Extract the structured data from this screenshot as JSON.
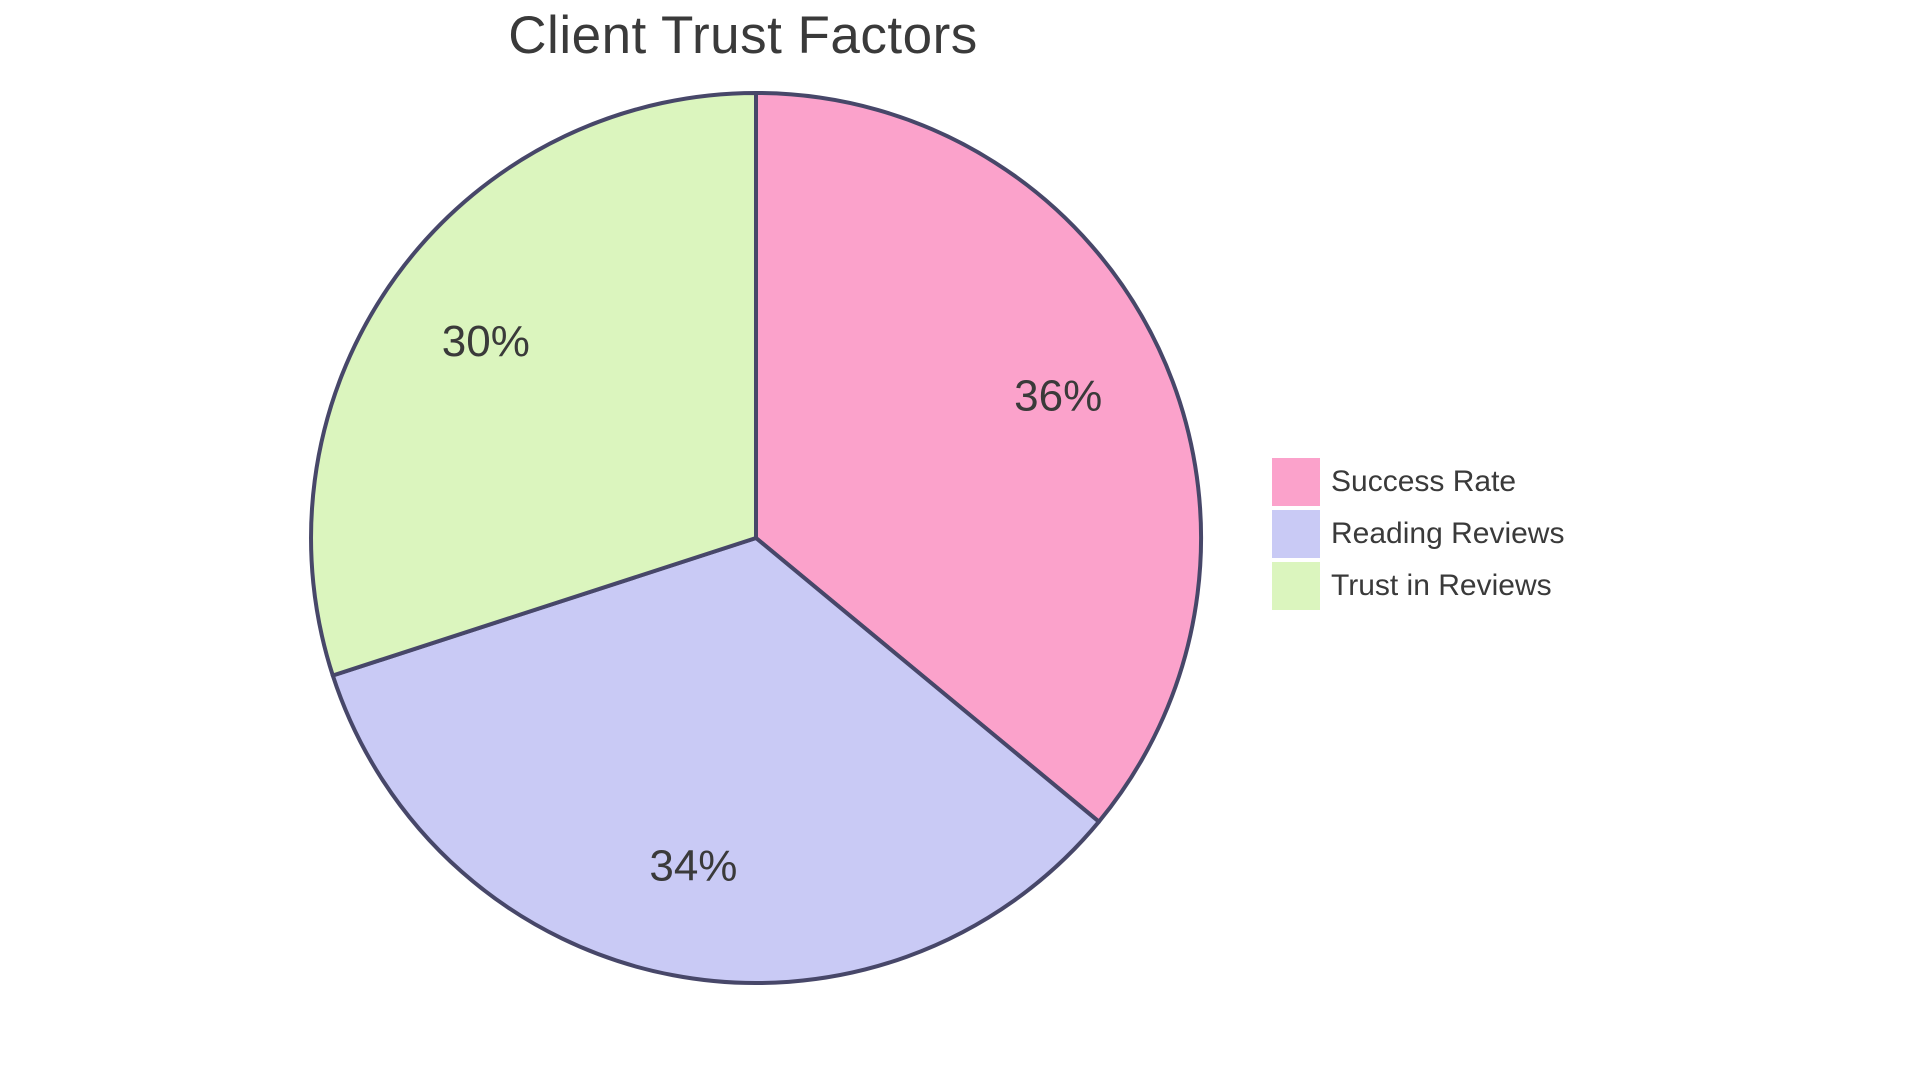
{
  "chart_data": {
    "type": "pie",
    "title": "Client Trust Factors",
    "labels": [
      "Success Rate",
      "Reading Reviews",
      "Trust in Reviews"
    ],
    "values": [
      36,
      34,
      30
    ],
    "slice_labels": [
      "36%",
      "34%",
      "30%"
    ],
    "colors": [
      "#FBA2CB",
      "#C9CAF5",
      "#DBF5BE"
    ],
    "outline_color": "#474769",
    "text_color": "#3A3A3A",
    "title_color": "#3A3A3A",
    "start_angle": "top",
    "direction": "clockwise",
    "legend_position": "right",
    "background_color": "#FFFFFF"
  }
}
